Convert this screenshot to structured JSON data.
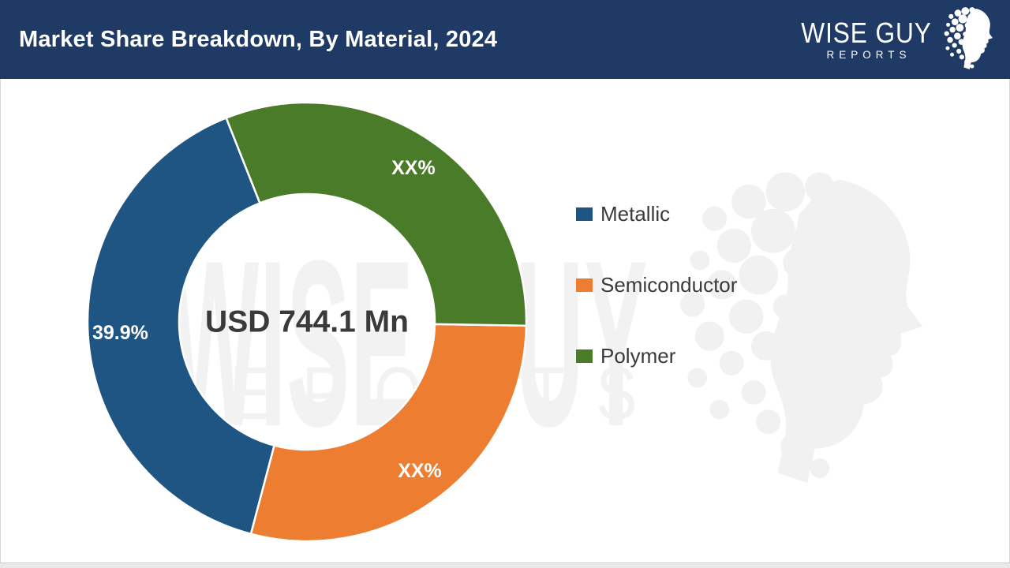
{
  "header": {
    "title": "Market Share Breakdown, By Material, 2024",
    "logo": {
      "wordmark": "WISE GUY",
      "subtitle": "REPORTS"
    }
  },
  "watermark": {
    "wordmark": "WISE GUY",
    "subtitle": "REPORTS"
  },
  "chart_data": {
    "type": "pie",
    "subtype": "donut",
    "title": "Market Share Breakdown, By Material, 2024",
    "center_label": "USD 744.1 Mn",
    "legend_position": "right",
    "angle_reference": "degrees clockwise from 12 o'clock",
    "segments": [
      {
        "label": "Metallic",
        "color": "#1F5582",
        "displayed_value": "39.9%",
        "pct": 39.9,
        "pct_is_estimate": false,
        "start_deg": 194.8,
        "end_deg": 338.4
      },
      {
        "label": "Semiconductor",
        "color": "#ED7D31",
        "displayed_value": "XX%",
        "pct": 28.8,
        "pct_is_estimate": true,
        "start_deg": 91.0,
        "end_deg": 194.8
      },
      {
        "label": "Polymer",
        "color": "#4A7B28",
        "displayed_value": "XX%",
        "pct": 31.3,
        "pct_is_estimate": true,
        "start_deg": -21.6,
        "end_deg": 91.0
      }
    ]
  },
  "colors": {
    "header_bg": "#203A66",
    "segment_label": "#FFFFFF",
    "center_label": "#3A3A3A",
    "legend_text": "#3A3A3A",
    "watermark": "#F2F2F2"
  }
}
